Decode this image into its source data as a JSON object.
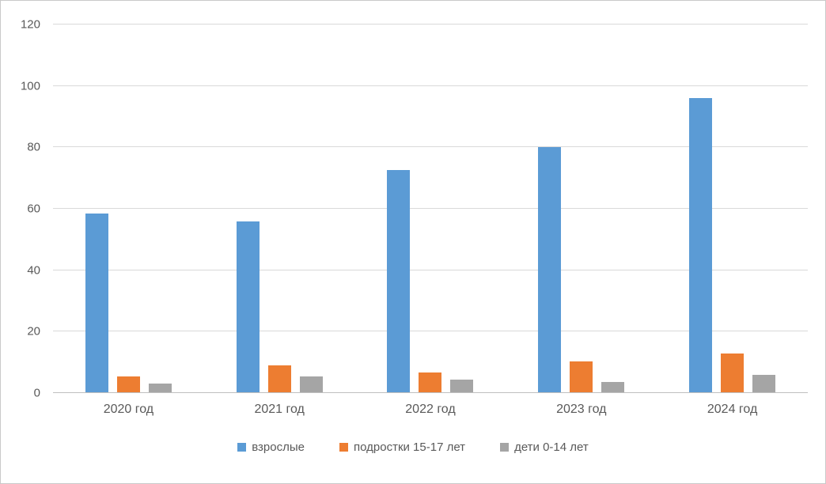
{
  "chart_data": {
    "type": "bar",
    "title": "",
    "xlabel": "",
    "ylabel": "",
    "categories": [
      "2020 год",
      "2021 год",
      "2022 год",
      "2023 год",
      "2024 год"
    ],
    "series": [
      {
        "name": "взрослые",
        "color": "#5B9BD5",
        "values": [
          58.5,
          56,
          72.5,
          80,
          96
        ]
      },
      {
        "name": "подростки 15-17 лет",
        "color": "#ED7D31",
        "values": [
          5.4,
          9,
          6.7,
          10.3,
          12.8
        ]
      },
      {
        "name": "дети 0-14 лет",
        "color": "#A5A5A5",
        "values": [
          3.2,
          5.5,
          4.3,
          3.5,
          5.8
        ]
      }
    ],
    "ylim": [
      0,
      120
    ],
    "yticks": [
      0,
      20,
      40,
      60,
      80,
      100,
      120
    ],
    "grid": true,
    "legend_position": "bottom",
    "colors": {
      "gridline": "#d9d9d9",
      "axis_line": "#bfbfbf",
      "tick_text": "#595959",
      "frame_border": "#c9c9c9"
    }
  }
}
